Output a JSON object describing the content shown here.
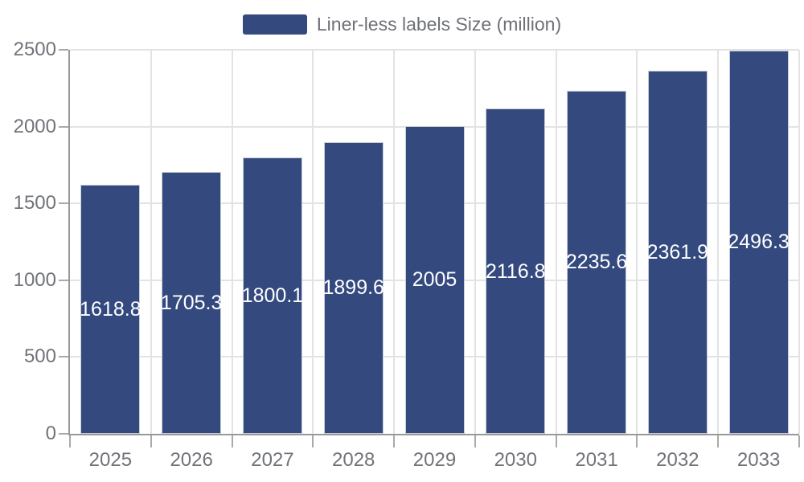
{
  "legend": {
    "items": [
      {
        "label": "Liner-less labels Size (million)",
        "color": "#344a7f"
      }
    ]
  },
  "chart_data": {
    "type": "bar",
    "title": "",
    "categories": [
      "2025",
      "2026",
      "2027",
      "2028",
      "2029",
      "2030",
      "2031",
      "2032",
      "2033"
    ],
    "series": [
      {
        "name": "Liner-less labels Size (million)",
        "values": [
          1618.8,
          1705.3,
          1800.1,
          1899.6,
          2005,
          2116.8,
          2235.6,
          2361.9,
          2496.3
        ]
      }
    ],
    "bar_value_labels": [
      "1618.8",
      "1705.3",
      "1800.1",
      "1899.6",
      "2005",
      "2116.8",
      "2235.6",
      "2361.9",
      "2496.3"
    ],
    "xlabel": "",
    "ylabel": "",
    "ylim": [
      0,
      2500
    ],
    "yticks": [
      0,
      500,
      1000,
      1500,
      2000,
      2500
    ],
    "grid": true,
    "legend_position": "top-center",
    "bar_label_position": "inside-center",
    "colors": {
      "bar": "#344a7f",
      "bar_border": "#c9cdd6",
      "bar_label": "#ffffff",
      "axis": "#999999",
      "tick": "#aaaaaa",
      "grid": "#e3e3e3",
      "tick_text": "#707379",
      "legend_text": "#6e7079"
    }
  }
}
